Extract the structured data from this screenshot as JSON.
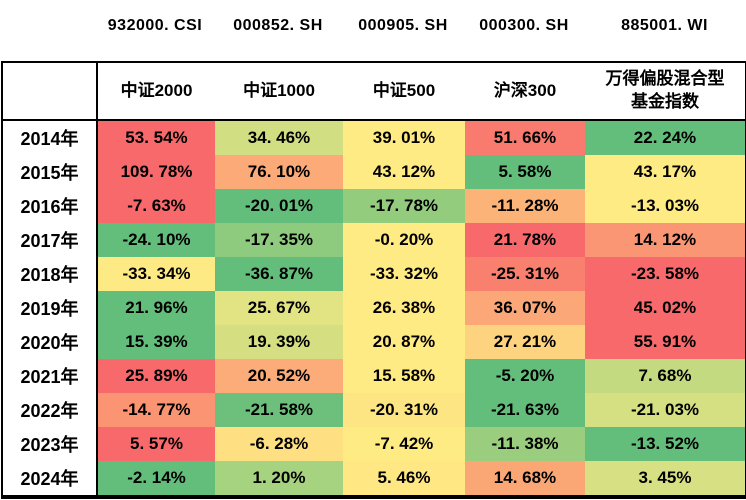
{
  "codes_row": {
    "codes": [
      "932000. CSI",
      "000852. SH",
      "000905. SH",
      "000300. SH",
      "885001. WI"
    ]
  },
  "table": {
    "corner_label": "",
    "columns": [
      "中证2000",
      "中证1000",
      "中证500",
      "沪深300",
      "万得偏股混合型\n基金指数"
    ],
    "rows": [
      {
        "year": "2014年",
        "cells": [
          {
            "value": "53. 54%",
            "color": "#F8696B"
          },
          {
            "value": "34. 46%",
            "color": "#D2DE82"
          },
          {
            "value": "39. 01%",
            "color": "#FFEB84"
          },
          {
            "value": "51. 66%",
            "color": "#F97A6E"
          },
          {
            "value": "22. 24%",
            "color": "#63BE7B"
          }
        ]
      },
      {
        "year": "2015年",
        "cells": [
          {
            "value": "109. 78%",
            "color": "#F8696B"
          },
          {
            "value": "76. 10%",
            "color": "#FCAB78"
          },
          {
            "value": "43. 12%",
            "color": "#FFEB84"
          },
          {
            "value": "5. 58%",
            "color": "#63BE7B"
          },
          {
            "value": "43. 17%",
            "color": "#FFEB84"
          }
        ]
      },
      {
        "year": "2016年",
        "cells": [
          {
            "value": "-7. 63%",
            "color": "#F8696B"
          },
          {
            "value": "-20. 01%",
            "color": "#63BE7B"
          },
          {
            "value": "-17. 78%",
            "color": "#94CC7E"
          },
          {
            "value": "-11. 28%",
            "color": "#FCB377"
          },
          {
            "value": "-13. 03%",
            "color": "#FFEB84"
          }
        ]
      },
      {
        "year": "2017年",
        "cells": [
          {
            "value": "-24. 10%",
            "color": "#63BE7B"
          },
          {
            "value": "-17. 35%",
            "color": "#8FCB7E"
          },
          {
            "value": "-0. 20%",
            "color": "#FFEB84"
          },
          {
            "value": "21. 78%",
            "color": "#F8696B"
          },
          {
            "value": "14. 12%",
            "color": "#FA9674"
          }
        ]
      },
      {
        "year": "2018年",
        "cells": [
          {
            "value": "-33. 34%",
            "color": "#FEEA84"
          },
          {
            "value": "-36. 87%",
            "color": "#63BE7B"
          },
          {
            "value": "-33. 32%",
            "color": "#FFEB84"
          },
          {
            "value": "-25. 31%",
            "color": "#F9806F"
          },
          {
            "value": "-23. 58%",
            "color": "#F8696B"
          }
        ]
      },
      {
        "year": "2019年",
        "cells": [
          {
            "value": "21. 96%",
            "color": "#63BE7B"
          },
          {
            "value": "25. 67%",
            "color": "#E2E383"
          },
          {
            "value": "26. 38%",
            "color": "#FFEB84"
          },
          {
            "value": "36. 07%",
            "color": "#FBA777"
          },
          {
            "value": "45. 02%",
            "color": "#F8696B"
          }
        ]
      },
      {
        "year": "2020年",
        "cells": [
          {
            "value": "15. 39%",
            "color": "#63BE7B"
          },
          {
            "value": "19. 39%",
            "color": "#D5DF82"
          },
          {
            "value": "20. 87%",
            "color": "#FFEB84"
          },
          {
            "value": "27. 21%",
            "color": "#FED37F"
          },
          {
            "value": "55. 91%",
            "color": "#F8696B"
          }
        ]
      },
      {
        "year": "2021年",
        "cells": [
          {
            "value": "25. 89%",
            "color": "#F8696B"
          },
          {
            "value": "20. 52%",
            "color": "#FBAC78"
          },
          {
            "value": "15. 58%",
            "color": "#FFEB84"
          },
          {
            "value": "-5. 20%",
            "color": "#63BE7B"
          },
          {
            "value": "7. 68%",
            "color": "#C4DA81"
          }
        ]
      },
      {
        "year": "2022年",
        "cells": [
          {
            "value": "-14. 77%",
            "color": "#FA9473"
          },
          {
            "value": "-21. 58%",
            "color": "#6DC07C"
          },
          {
            "value": "-20. 31%",
            "color": "#FEE583"
          },
          {
            "value": "-21. 63%",
            "color": "#63BE7B"
          },
          {
            "value": "-21. 03%",
            "color": "#D5E082"
          }
        ]
      },
      {
        "year": "2023年",
        "cells": [
          {
            "value": "5. 57%",
            "color": "#F8696B"
          },
          {
            "value": "-6. 28%",
            "color": "#FEE082"
          },
          {
            "value": "-7. 42%",
            "color": "#FFEB84"
          },
          {
            "value": "-11. 38%",
            "color": "#9ACE7E"
          },
          {
            "value": "-13. 52%",
            "color": "#63BE7B"
          }
        ]
      },
      {
        "year": "2024年",
        "cells": [
          {
            "value": "-2. 14%",
            "color": "#63BE7B"
          },
          {
            "value": "1. 20%",
            "color": "#A6D37F"
          },
          {
            "value": "5. 46%",
            "color": "#FFE883"
          },
          {
            "value": "14. 68%",
            "color": "#FBA775"
          },
          {
            "value": "3. 45%",
            "color": "#D7E083"
          }
        ]
      }
    ]
  },
  "chart_data": {
    "type": "heatmap",
    "title": "",
    "row_labels": [
      "2014年",
      "2015年",
      "2016年",
      "2017年",
      "2018年",
      "2019年",
      "2020年",
      "2021年",
      "2022年",
      "2023年",
      "2024年"
    ],
    "columns": [
      {
        "code": "932000.CSI",
        "name": "中证2000",
        "values_pct": [
          53.54,
          109.78,
          -7.63,
          -24.1,
          -33.34,
          21.96,
          15.39,
          25.89,
          -14.77,
          5.57,
          -2.14
        ]
      },
      {
        "code": "000852.SH",
        "name": "中证1000",
        "values_pct": [
          34.46,
          76.1,
          -20.01,
          -17.35,
          -36.87,
          25.67,
          19.39,
          20.52,
          -21.58,
          -6.28,
          1.2
        ]
      },
      {
        "code": "000905.SH",
        "name": "中证500",
        "values_pct": [
          39.01,
          43.12,
          -17.78,
          -0.2,
          -33.32,
          26.38,
          20.87,
          15.58,
          -20.31,
          -7.42,
          5.46
        ]
      },
      {
        "code": "000300.SH",
        "name": "沪深300",
        "values_pct": [
          51.66,
          5.58,
          -11.28,
          21.78,
          -25.31,
          36.07,
          27.21,
          -5.2,
          -21.63,
          -11.38,
          14.68
        ]
      },
      {
        "code": "885001.WI",
        "name": "万得偏股混合型基金指数",
        "values_pct": [
          22.24,
          43.17,
          -13.03,
          14.12,
          -23.58,
          45.02,
          55.91,
          7.68,
          -21.03,
          -13.52,
          3.45
        ]
      }
    ],
    "color_scale": {
      "low_color": "#63BE7B",
      "mid_color": "#FFEB84",
      "high_color": "#F8696B",
      "normalized": "per-row",
      "low_means": "row minimum",
      "high_means": "row maximum"
    },
    "grid": false,
    "legend": "none"
  }
}
